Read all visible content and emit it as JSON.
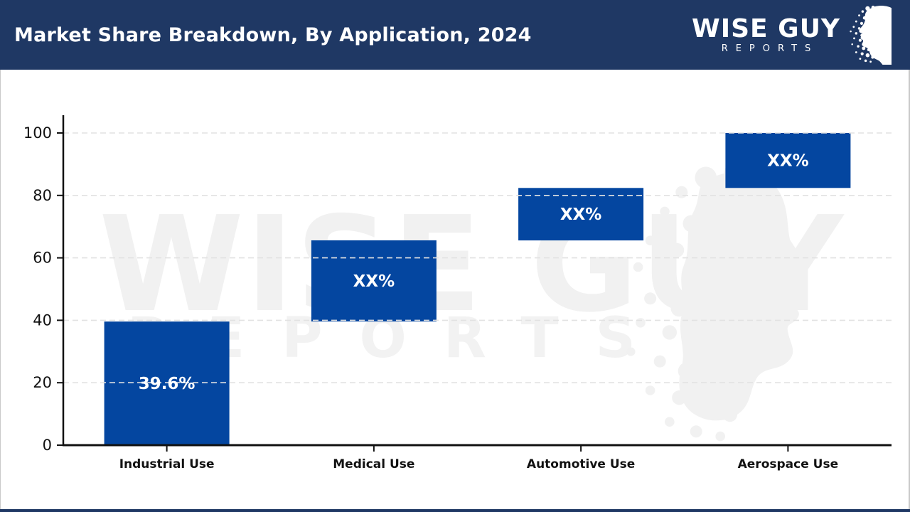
{
  "header": {
    "title": "Market Share Breakdown, By Application, 2024",
    "bg_color": "#1f3864",
    "logo": {
      "line1": "WISE GUY",
      "line2": "REPORTS"
    }
  },
  "watermark": {
    "line1": "WISE GUY",
    "line2": "REPORTS"
  },
  "chart_data": {
    "type": "bar",
    "variant": "stepped-waterfall",
    "title": "Market Share Breakdown, By Application, 2024",
    "categories": [
      "Industrial Use",
      "Medical Use",
      "Automotive Use",
      "Aerospace Use"
    ],
    "bars": [
      {
        "category": "Industrial Use",
        "start": 0,
        "end": 39.6,
        "label": "39.6%"
      },
      {
        "category": "Medical Use",
        "start": 39.6,
        "end": 65.6,
        "label": "XX%"
      },
      {
        "category": "Automotive Use",
        "start": 65.6,
        "end": 82.4,
        "label": "XX%"
      },
      {
        "category": "Aerospace Use",
        "start": 82.4,
        "end": 100,
        "label": "XX%"
      }
    ],
    "xlabel": "",
    "ylabel": "",
    "ylim": [
      0,
      100
    ],
    "yticks": [
      0,
      20,
      40,
      60,
      80,
      100
    ],
    "grid": "horizontal-dashed",
    "legend": "none",
    "bar_color": "#0446a0",
    "bar_label_color": "#ffffff",
    "axis_color": "#111111",
    "gridline_color": "#e2e2e2"
  },
  "footer": {
    "bar_color": "#1f3864"
  }
}
